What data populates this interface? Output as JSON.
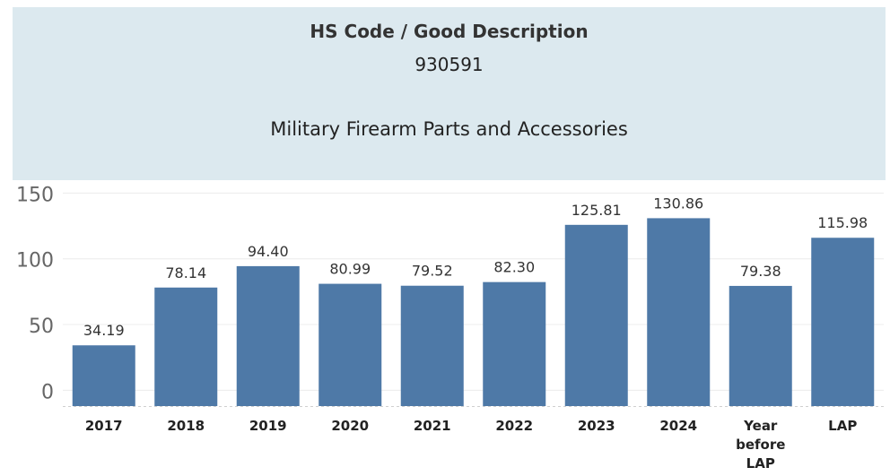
{
  "header": {
    "title": "HS Code / Good Description",
    "hs_code": "930591",
    "description": "Military Firearm Parts and Accessories"
  },
  "chart_data": {
    "type": "bar",
    "categories": [
      "2017",
      "2018",
      "2019",
      "2020",
      "2021",
      "2022",
      "2023",
      "2024",
      "Year before LAP",
      "LAP"
    ],
    "category_lines": [
      [
        "2017"
      ],
      [
        "2018"
      ],
      [
        "2019"
      ],
      [
        "2020"
      ],
      [
        "2021"
      ],
      [
        "2022"
      ],
      [
        "2023"
      ],
      [
        "2024"
      ],
      [
        "Year",
        "before",
        "LAP"
      ],
      [
        "LAP"
      ]
    ],
    "values": [
      34.19,
      78.14,
      94.4,
      80.99,
      79.52,
      82.3,
      125.81,
      130.86,
      79.38,
      115.98
    ],
    "value_labels": [
      "34.19",
      "78.14",
      "94.40",
      "80.99",
      "79.52",
      "82.30",
      "125.81",
      "130.86",
      "79.38",
      "115.98"
    ],
    "y_ticks": [
      0,
      50,
      100,
      150
    ],
    "ylim": [
      -12,
      155
    ],
    "xlabel": "",
    "ylabel": "",
    "grid": true,
    "bar_color": "#4e79a7"
  }
}
